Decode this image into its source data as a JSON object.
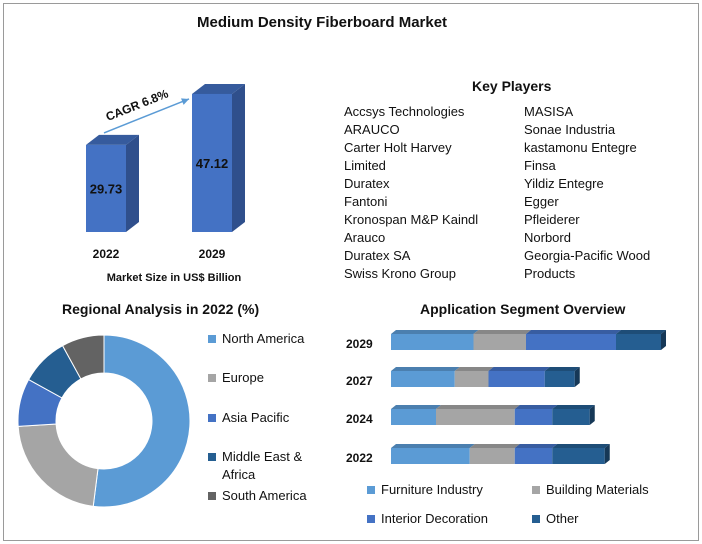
{
  "title": "Medium Density Fiberboard Market",
  "colors": {
    "north_america": "#5b9bd5",
    "europe": "#a5a5a5",
    "asia_pacific": "#4472c4",
    "middle_east_africa": "#255e91",
    "south_america": "#636363",
    "bar": "#4472c4",
    "bar_side": "#2f4f8c",
    "arrow": "#5b9bd5"
  },
  "key_players": {
    "title": "Key Players",
    "col1": [
      "Accsys Technologies",
      "ARAUCO",
      "Carter Holt Harvey",
      "Limited",
      "Duratex",
      "Fantoni",
      "Kronospan M&P Kaindl",
      "Arauco",
      "Duratex SA",
      "Swiss Krono Group"
    ],
    "col2": [
      "MASISA",
      "Sonae Industria",
      "kastamonu Entegre",
      "Finsa",
      "Yildiz Entegre",
      "Egger",
      "Pfleiderer",
      "Norbord",
      "Georgia-Pacific Wood",
      "Products"
    ]
  },
  "chart_data": [
    {
      "type": "bar",
      "title": "",
      "categories": [
        "2022",
        "2029"
      ],
      "values": [
        29.73,
        47.12
      ],
      "data_labels": [
        "29.73",
        "47.12"
      ],
      "xlabel": "Market Size in US$ Billion",
      "annotation": "CAGR 6.8%",
      "ylim": [
        0,
        50
      ]
    },
    {
      "type": "pie",
      "title": "Regional Analysis in 2022 (%)",
      "categories": [
        "North America",
        "Europe",
        "Asia Pacific",
        "Middle East & Africa",
        "South America"
      ],
      "values": [
        52,
        22,
        9,
        9,
        8
      ],
      "legend": "right"
    },
    {
      "type": "bar",
      "orientation": "horizontal",
      "stacked": true,
      "title": "Application Segment Overview",
      "categories": [
        "2029",
        "2027",
        "2024",
        "2022"
      ],
      "series": [
        {
          "name": "Furniture Industry",
          "values": [
            22,
            17,
            12,
            21
          ]
        },
        {
          "name": "Building Materials",
          "values": [
            14,
            9,
            21,
            12
          ]
        },
        {
          "name": "Interior Decoration",
          "values": [
            24,
            15,
            10,
            10
          ]
        },
        {
          "name": "Other",
          "values": [
            12,
            8,
            10,
            14
          ]
        }
      ],
      "legend": "bottom"
    }
  ]
}
